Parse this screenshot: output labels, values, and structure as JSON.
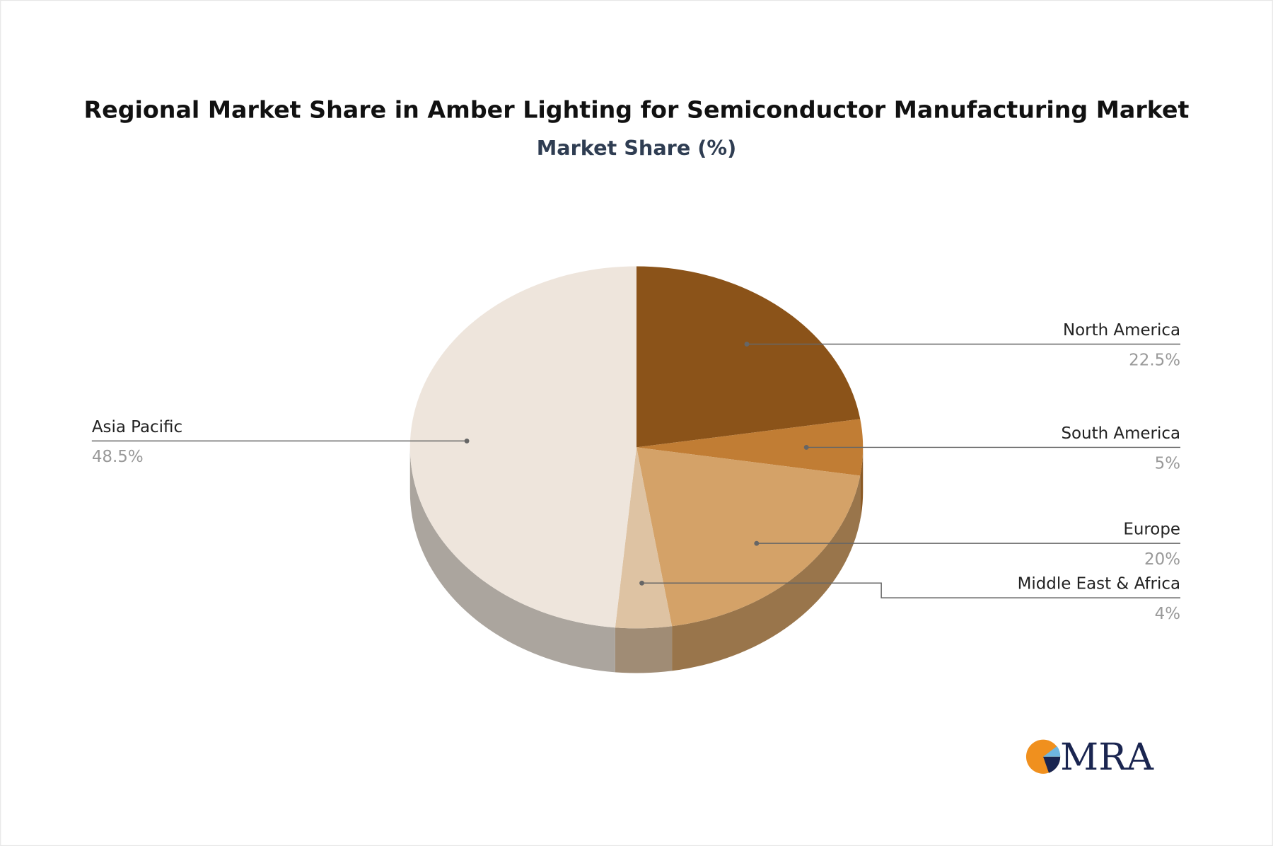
{
  "chart_data": {
    "type": "pie",
    "title": "Regional Market Share in Amber Lighting for Semiconductor Manufacturing Market",
    "subtitle": "Market Share (%)",
    "categories": [
      "North America",
      "South America",
      "Europe",
      "Middle East & Africa",
      "Asia Pacific"
    ],
    "values": [
      22.5,
      5,
      20,
      4,
      48.5
    ],
    "value_labels": [
      "22.5%",
      "5%",
      "20%",
      "4%",
      "48.5%"
    ],
    "colors": [
      "#8b5319",
      "#c17d34",
      "#d4a268",
      "#dec3a3",
      "#eee5dc"
    ]
  },
  "logo": "MRA"
}
